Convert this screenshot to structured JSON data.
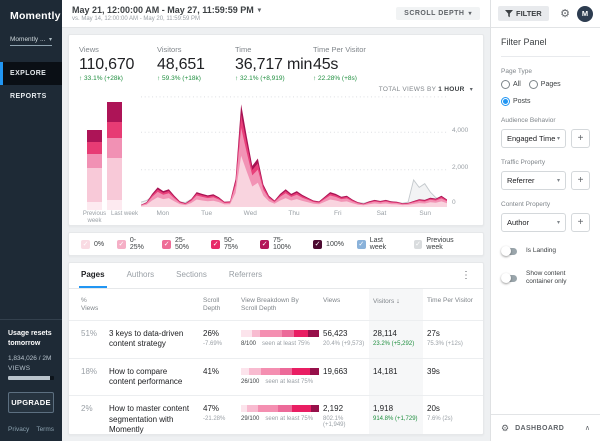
{
  "icons": {
    "arrow_up": "↑",
    "chevron_down": "▾",
    "chevron_up": "∧",
    "kebab": "⋮",
    "gear": "⚙",
    "check": "✓",
    "plus": "+",
    "sort_down": "↓"
  },
  "colors": {
    "accent_blue": "#2196f3",
    "delta_green": "#1e8e3e",
    "pink_bands": [
      "#f9d4df",
      "#f293b5",
      "#e8407a",
      "#a81253"
    ],
    "band_fractions": [
      0.5,
      0.27,
      0.13,
      0.1
    ],
    "prev_line": "#c4c9cd",
    "breakdown_palette": [
      "#fce4ec",
      "#f8bbd0",
      "#f48fb1",
      "#ec6a99",
      "#e91e63",
      "#96104a"
    ],
    "checkbox_scroll": [
      "#f9dbe3",
      "#f5afc6",
      "#ee6d97",
      "#e72b68",
      "#b3175a",
      "#4d0a31"
    ],
    "checkbox_weeks": [
      "#8ab2da",
      "#d9dcde"
    ]
  },
  "sidebar": {
    "logo": "Momently",
    "workspace": "Momently ...",
    "nav": [
      {
        "label": "EXPLORE",
        "active": true
      },
      {
        "label": "REPORTS",
        "active": false
      }
    ],
    "usage": {
      "title": "Usage resets tomorrow",
      "count": "1,834,026 / 2M",
      "unit": "VIEWS",
      "progress_pct": 92
    },
    "upgrade_label": "UPGRADE",
    "links": [
      "Privacy",
      "Terms"
    ]
  },
  "topbar": {
    "date_range": "May 21, 12:00:00 AM - May 27, 11:59:59 PM",
    "compare_range": "vs. May 14, 12:00:00 AM - May 20, 11:59:59 PM",
    "scroll_depth_label": "SCROLL DEPTH"
  },
  "metrics": [
    {
      "label": "Views",
      "value": "110,670",
      "delta": "33.1% (+28k)"
    },
    {
      "label": "Visitors",
      "value": "48,651",
      "delta": "59.3% (+18k)"
    },
    {
      "label": "Time",
      "value": "36,717 min",
      "delta": "32.1% (+8,919)"
    },
    {
      "label": "Time Per Visitor",
      "value": "45s",
      "delta": "22.28% (+8s)"
    }
  ],
  "chart": {
    "head_label": "TOTAL VIEWS BY",
    "interval": "1 HOUR",
    "y_tick_labels": [
      "4,000",
      "2,000",
      "0"
    ],
    "prev_bar_label": "Previous week",
    "last_bar_label": "Last week"
  },
  "chart_data": {
    "type": "area",
    "title": "Total views by 1 hour, May 21 - May 27 vs previous week",
    "days": [
      "Mon",
      "Tue",
      "Wed",
      "Thu",
      "Fri",
      "Sat",
      "Sun"
    ],
    "samples_per_day": 8,
    "ylim": [
      0,
      6000
    ],
    "y_ticks": [
      0,
      2000,
      4000
    ],
    "grid": true,
    "series": [
      {
        "name": "Last week views (stacked by scroll depth)",
        "values": [
          120,
          250,
          700,
          1050,
          850,
          950,
          600,
          300,
          200,
          420,
          800,
          700,
          620,
          680,
          520,
          280,
          300,
          1500,
          5500,
          3800,
          2200,
          2600,
          1200,
          600,
          350,
          700,
          950,
          700,
          850,
          650,
          500,
          350,
          300,
          550,
          800,
          700,
          550,
          600,
          400,
          250,
          180,
          300,
          380,
          320,
          380,
          300,
          280,
          200,
          220,
          320,
          420,
          380,
          500,
          450,
          600,
          400
        ]
      },
      {
        "name": "Previous week views",
        "values": [
          260,
          350,
          550,
          480,
          420,
          380,
          320,
          260,
          240,
          400,
          620,
          540,
          480,
          420,
          340,
          260,
          260,
          420,
          560,
          500,
          460,
          400,
          340,
          280,
          280,
          450,
          600,
          520,
          560,
          460,
          380,
          300,
          260,
          380,
          520,
          460,
          420,
          360,
          300,
          240,
          200,
          280,
          340,
          300,
          320,
          280,
          240,
          200,
          260,
          1450,
          1050,
          1250,
          800,
          500,
          380,
          300
        ]
      }
    ],
    "stack_fractions": {
      "0-25%": 0.5,
      "25-50%": 0.27,
      "50-75%": 0.13,
      "75-100%": 0.1
    },
    "legend_bars": {
      "previous_week": {
        "label": "Previous week",
        "segments": [
          8,
          34,
          14,
          12,
          12
        ]
      },
      "last_week": {
        "label": "Last week",
        "segments": [
          10,
          42,
          20,
          16,
          20
        ]
      },
      "segment_colors": [
        "#fdeaf0",
        "#f8c9d8",
        "#f191b4",
        "#e73b74",
        "#ad1457"
      ]
    }
  },
  "filters_row": {
    "scroll": [
      {
        "label": "0%",
        "checked": true
      },
      {
        "label": "0-25%",
        "checked": true
      },
      {
        "label": "25-50%",
        "checked": true
      },
      {
        "label": "50-75%",
        "checked": true
      },
      {
        "label": "75-100%",
        "checked": true
      },
      {
        "label": "100%",
        "checked": true
      }
    ],
    "weeks": [
      {
        "label": "Last week",
        "checked": true
      },
      {
        "label": "Previous week",
        "checked": true
      }
    ]
  },
  "table": {
    "tabs": [
      {
        "label": "Pages",
        "active": true
      },
      {
        "label": "Authors",
        "active": false
      },
      {
        "label": "Sections",
        "active": false
      },
      {
        "label": "Referrers",
        "active": false
      }
    ],
    "columns": {
      "views_pct": "% Views",
      "scroll_depth": "Scroll Depth",
      "breakdown": "View Breakdown By Scroll Depth",
      "views": "Views",
      "visitors": "Visitors",
      "tpv": "Time Per Visitor"
    },
    "sort_column": "Visitors",
    "rows": [
      {
        "views_pct": "51%",
        "title": "3 keys to data-driven content strategy",
        "scroll_depth": "26%",
        "scroll_depth_sub": "-7.69%",
        "breakdown": [
          14,
          10,
          28,
          16,
          18,
          14
        ],
        "breakdown_label": "8/100",
        "breakdown_note": "seen at least 75%",
        "views": "56,423",
        "views_sub": "20.4% (+9,573)",
        "visitors": "28,114",
        "visitors_sub": "23.2% (+5,292)",
        "tpv": "27s",
        "tpv_sub": "75.3% (+12s)"
      },
      {
        "views_pct": "18%",
        "title": "How to compare content performance",
        "scroll_depth": "41%",
        "scroll_depth_sub": "",
        "breakdown": [
          10,
          16,
          24,
          16,
          22,
          12
        ],
        "breakdown_label": "26/100",
        "breakdown_note": "seen at least 75%",
        "views": "19,663",
        "views_sub": "",
        "visitors": "14,181",
        "visitors_sub": "",
        "tpv": "39s",
        "tpv_sub": ""
      },
      {
        "views_pct": "2%",
        "title": "How to master content segmentation with Momently",
        "scroll_depth": "47%",
        "scroll_depth_sub": "-21.28%",
        "breakdown": [
          8,
          14,
          26,
          18,
          24,
          10
        ],
        "breakdown_label": "29/100",
        "breakdown_note": "seen at least 75%",
        "views": "2,192",
        "views_sub": "802.1% (+1,949)",
        "visitors": "1,918",
        "visitors_sub": "914.8% (+1,729)",
        "tpv": "20s",
        "tpv_sub": "7.6% (2s)"
      }
    ]
  },
  "filter_panel": {
    "filter_button": "FILTER",
    "avatar_letter": "M",
    "title": "Filter Panel",
    "page_type": {
      "label": "Page Type",
      "options": [
        {
          "label": "All",
          "selected": false
        },
        {
          "label": "Pages",
          "selected": false
        },
        {
          "label": "Posts",
          "selected": true
        }
      ]
    },
    "sections": [
      {
        "label": "Audience Behavior",
        "value": "Engaged Time"
      },
      {
        "label": "Traffic Property",
        "value": "Referrer"
      },
      {
        "label": "Content Property",
        "value": "Author"
      }
    ],
    "toggles": [
      {
        "label": "Is Landing",
        "on": false
      },
      {
        "label": "Show content container only",
        "on": false
      }
    ],
    "dashboard_label": "DASHBOARD"
  }
}
